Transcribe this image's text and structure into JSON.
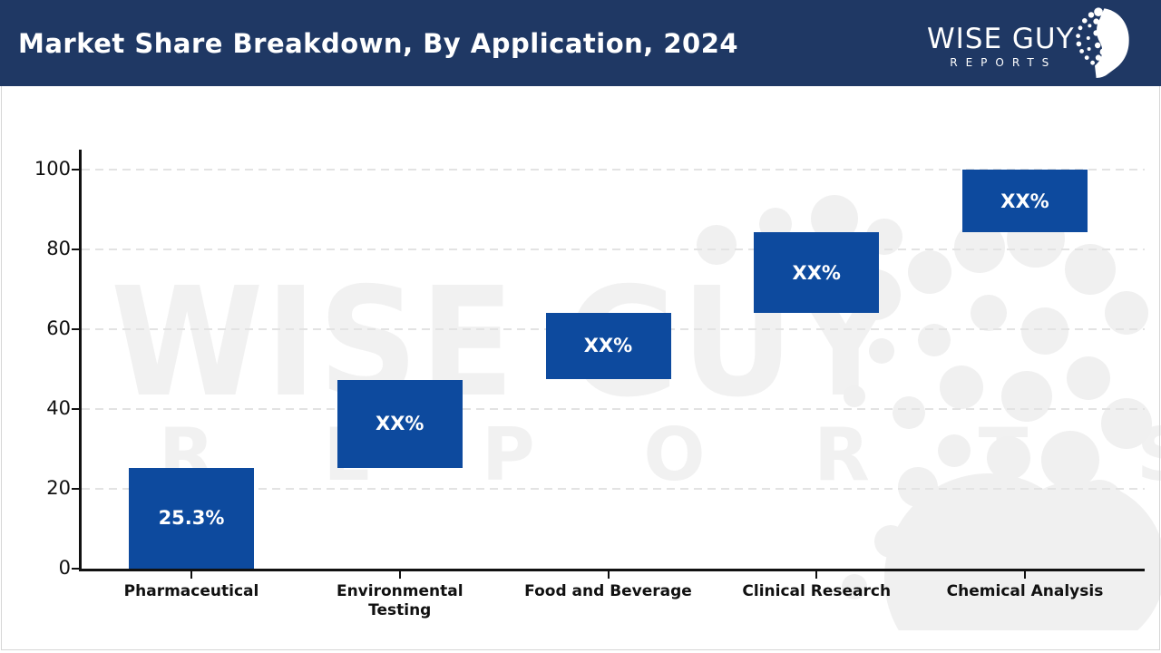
{
  "header": {
    "title": "Market Share Breakdown, By Application, 2024",
    "logo_line1": "WISE GUY",
    "logo_line2": "REPORTS"
  },
  "watermark": {
    "line1": "WISE GUY",
    "line2": "R E P O R T S"
  },
  "colors": {
    "header_bg": "#1f3864",
    "bar_blue": "#0d4a9e",
    "watermark_gray": "#f0f0f0"
  },
  "chart_data": {
    "type": "bar",
    "variant": "waterfall",
    "title": "Market Share Breakdown, By Application, 2024",
    "categories": [
      "Pharmaceutical",
      "Environmental Testing",
      "Food and Beverage",
      "Clinical Research",
      "Chemical Analysis"
    ],
    "segments": [
      {
        "category": "Pharmaceutical",
        "start": 0,
        "end": 25.3,
        "label": "25.3%"
      },
      {
        "category": "Environmental Testing",
        "start": 25.3,
        "end": 47.3,
        "label": "XX%"
      },
      {
        "category": "Food and Beverage",
        "start": 47.5,
        "end": 64.1,
        "label": "XX%"
      },
      {
        "category": "Clinical Research",
        "start": 64.1,
        "end": 84.3,
        "label": "XX%"
      },
      {
        "category": "Chemical Analysis",
        "start": 84.3,
        "end": 100,
        "label": "XX%"
      }
    ],
    "xlabel": "",
    "ylabel": "",
    "ylim": [
      0,
      100
    ],
    "yticks": [
      0,
      20,
      40,
      60,
      80,
      100
    ],
    "grid": "horizontal-dashed",
    "legend": "none",
    "bar_color": "#0d4a9e",
    "bar_label_color": "#ffffff"
  }
}
